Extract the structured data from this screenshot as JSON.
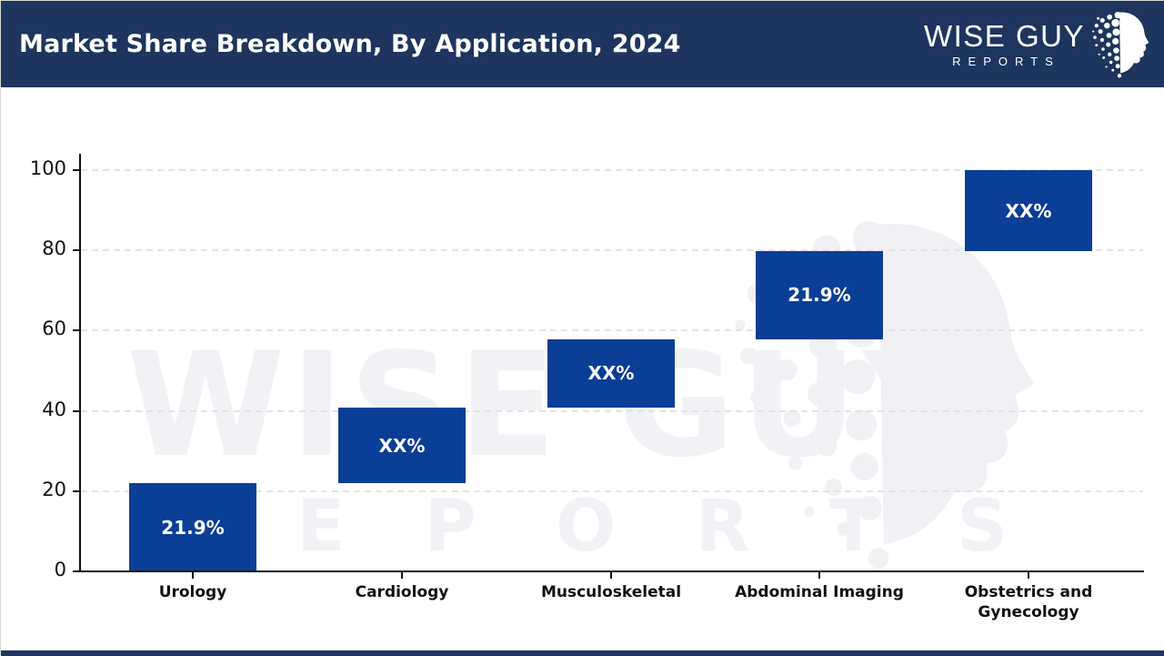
{
  "header": {
    "title": "Market Share Breakdown, By Application, 2024",
    "logo": {
      "name": "WISE GUY",
      "tagline": "REPORTS",
      "icon": "dotted-head-profile"
    }
  },
  "watermark": {
    "name": "WISE GUY",
    "tagline": "R E P O R T S",
    "icon": "dotted-head-profile"
  },
  "chart_data": {
    "type": "bar",
    "subtype": "waterfall-stacked-breakdown",
    "title": "Market Share Breakdown, By Application, 2024",
    "categories": [
      "Urology",
      "Cardiology",
      "Musculoskeletal",
      "Abdominal Imaging",
      "Obstetrics and Gynecology"
    ],
    "bars": [
      {
        "category": "Urology",
        "start": 0,
        "end": 21.9,
        "label": "21.9%"
      },
      {
        "category": "Cardiology",
        "start": 21.9,
        "end": 40.9,
        "label": "XX%"
      },
      {
        "category": "Musculoskeletal",
        "start": 40.9,
        "end": 57.9,
        "label": "XX%"
      },
      {
        "category": "Abdominal Imaging",
        "start": 57.9,
        "end": 79.8,
        "label": "21.9%"
      },
      {
        "category": "Obstetrics and Gynecology",
        "start": 79.8,
        "end": 100,
        "label": "XX%"
      }
    ],
    "yticks": [
      0,
      20,
      40,
      60,
      80,
      100
    ],
    "ylim": [
      0,
      105
    ],
    "xlabel": "",
    "ylabel": "",
    "grid": "horizontal-dashed",
    "legend": "none"
  },
  "colors": {
    "header_bg": "#1e355f",
    "footer_bar": "#1e355f",
    "bar": "#0b3e96",
    "bar_label": "#ffffff",
    "grid": "#e3e3e3",
    "axis": "#111111",
    "tick_label": "#111111",
    "watermark": "#f1f2f5",
    "page_border": "#d9d9d9"
  }
}
